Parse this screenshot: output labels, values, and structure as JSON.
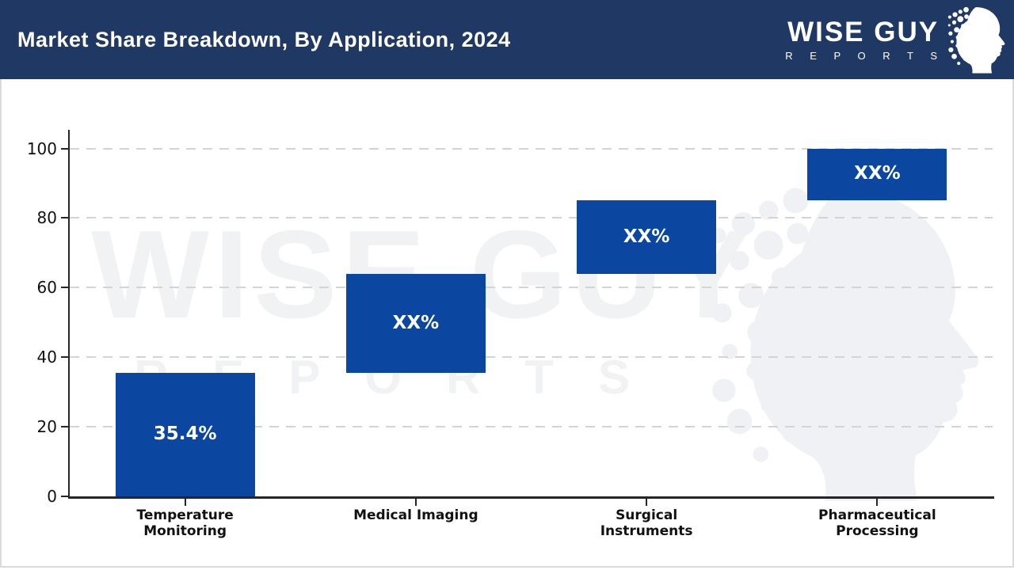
{
  "header": {
    "title": "Market Share Breakdown, By Application, 2024",
    "brand_line1": "WISE GUY",
    "brand_line2": "R E P O R T S"
  },
  "watermark": {
    "line1": "WISE GUY",
    "line2": "REPORTS"
  },
  "colors": {
    "header_bg": "#1f3864",
    "bar": "#0b47a1",
    "bar_label": "#ffffff",
    "gridline": "#d4d4d4",
    "axis": "#262626",
    "frame_border": "#dadada",
    "watermark": "#f1f2f4"
  },
  "chart_data": {
    "type": "bar",
    "subtype": "waterfall-floating-bars",
    "title": "Market Share Breakdown, By Application, 2024",
    "xlabel": "",
    "ylabel": "",
    "ylim": [
      0,
      105
    ],
    "yticks": [
      0,
      20,
      40,
      60,
      80,
      100
    ],
    "grid": "horizontal-dashed",
    "legend": "none",
    "categories": [
      "Temperature Monitoring",
      "Medical Imaging",
      "Surgical Instruments",
      "Pharmaceutical Processing"
    ],
    "category_label_lines": [
      [
        "Temperature",
        "Monitoring"
      ],
      [
        "Medical Imaging"
      ],
      [
        "Surgical",
        "Instruments"
      ],
      [
        "Pharmaceutical",
        "Processing"
      ]
    ],
    "segments": [
      {
        "category": "Temperature Monitoring",
        "start": 0,
        "end": 35.4,
        "label": "35.4%"
      },
      {
        "category": "Medical Imaging",
        "start": 35.4,
        "end": 64,
        "label": "XX%"
      },
      {
        "category": "Surgical Instruments",
        "start": 64,
        "end": 85,
        "label": "XX%"
      },
      {
        "category": "Pharmaceutical Processing",
        "start": 85,
        "end": 100,
        "label": "XX%"
      }
    ]
  }
}
